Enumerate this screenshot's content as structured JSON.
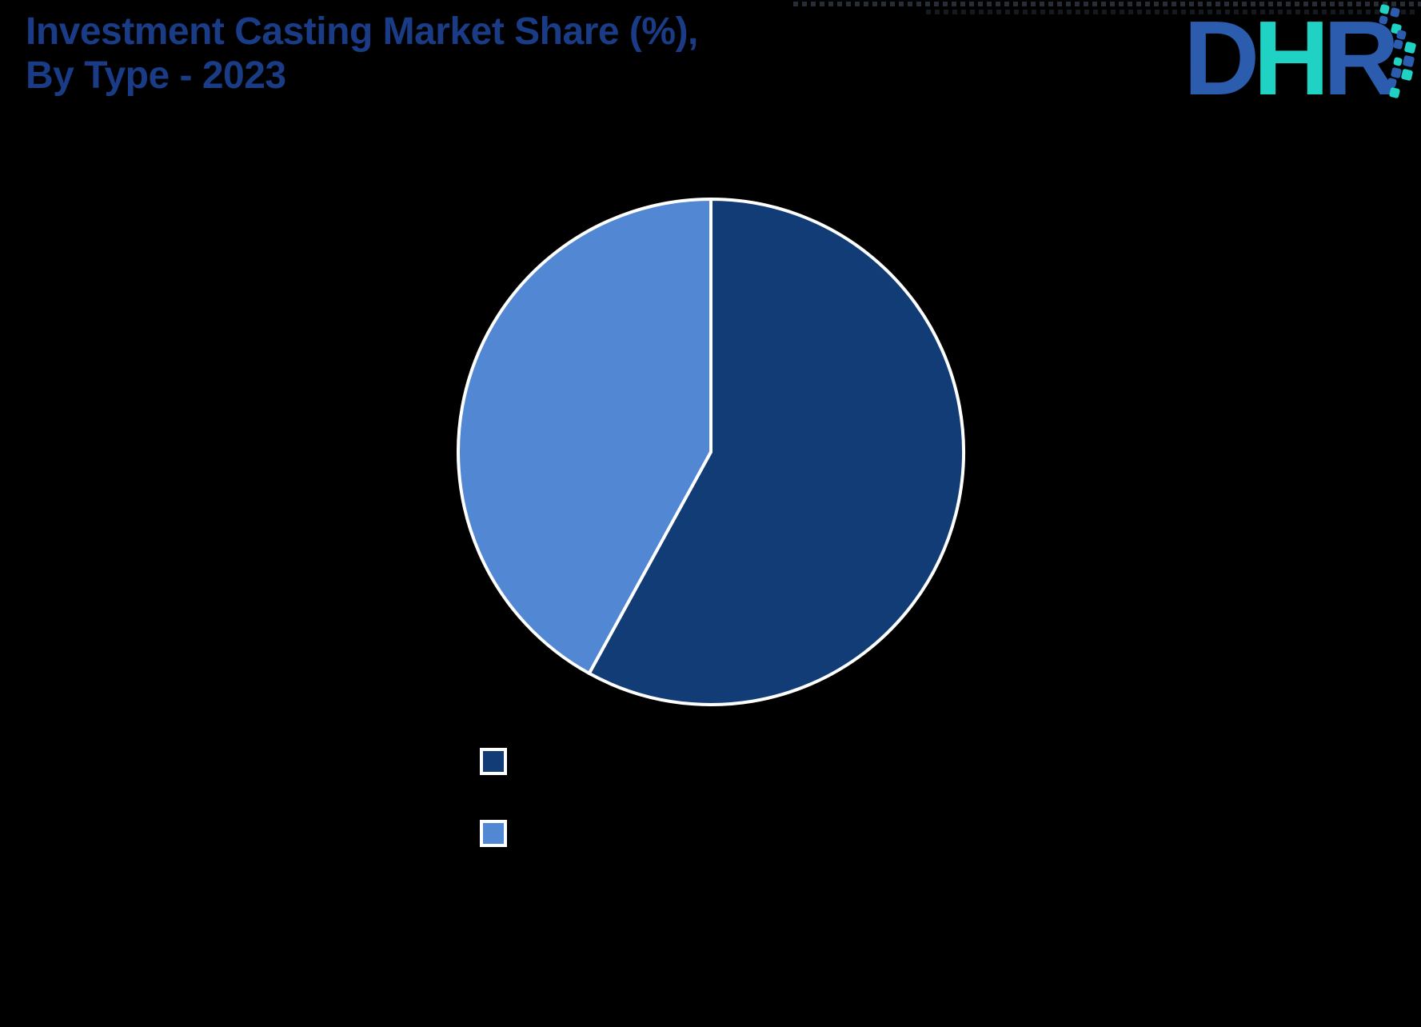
{
  "title": {
    "line1": "Investment Casting Market Share (%),",
    "line2": "By Type - 2023"
  },
  "logo": {
    "letters": [
      {
        "char": "D"
      },
      {
        "char": "H"
      },
      {
        "char": "R"
      }
    ]
  },
  "legend": {
    "position": "bottom-left",
    "items": [
      {
        "label": "",
        "color": "#113C75"
      },
      {
        "label": "",
        "color": "#5187D3"
      }
    ]
  },
  "chart_data": {
    "type": "pie",
    "title": "Investment Casting Market Share (%), By Type - 2023",
    "slices": [
      {
        "label": "",
        "value": 58,
        "color": "#113C75"
      },
      {
        "label": "",
        "value": 42,
        "color": "#5187D3"
      }
    ],
    "start_angle_deg": 0,
    "direction": "clockwise",
    "separator_color": "#FFFFFF",
    "labels_visible": false,
    "legend_position": "bottom-left"
  },
  "colors": {
    "background": "#000000",
    "title_text": "#1A3C86",
    "logo_blue": "#2B5CAD",
    "logo_teal": "#1FD2C4",
    "pie_dark": "#113C75",
    "pie_light": "#5187D3",
    "swatch_border": "#FFFFFF",
    "artifact_dash": "#2B323C"
  }
}
